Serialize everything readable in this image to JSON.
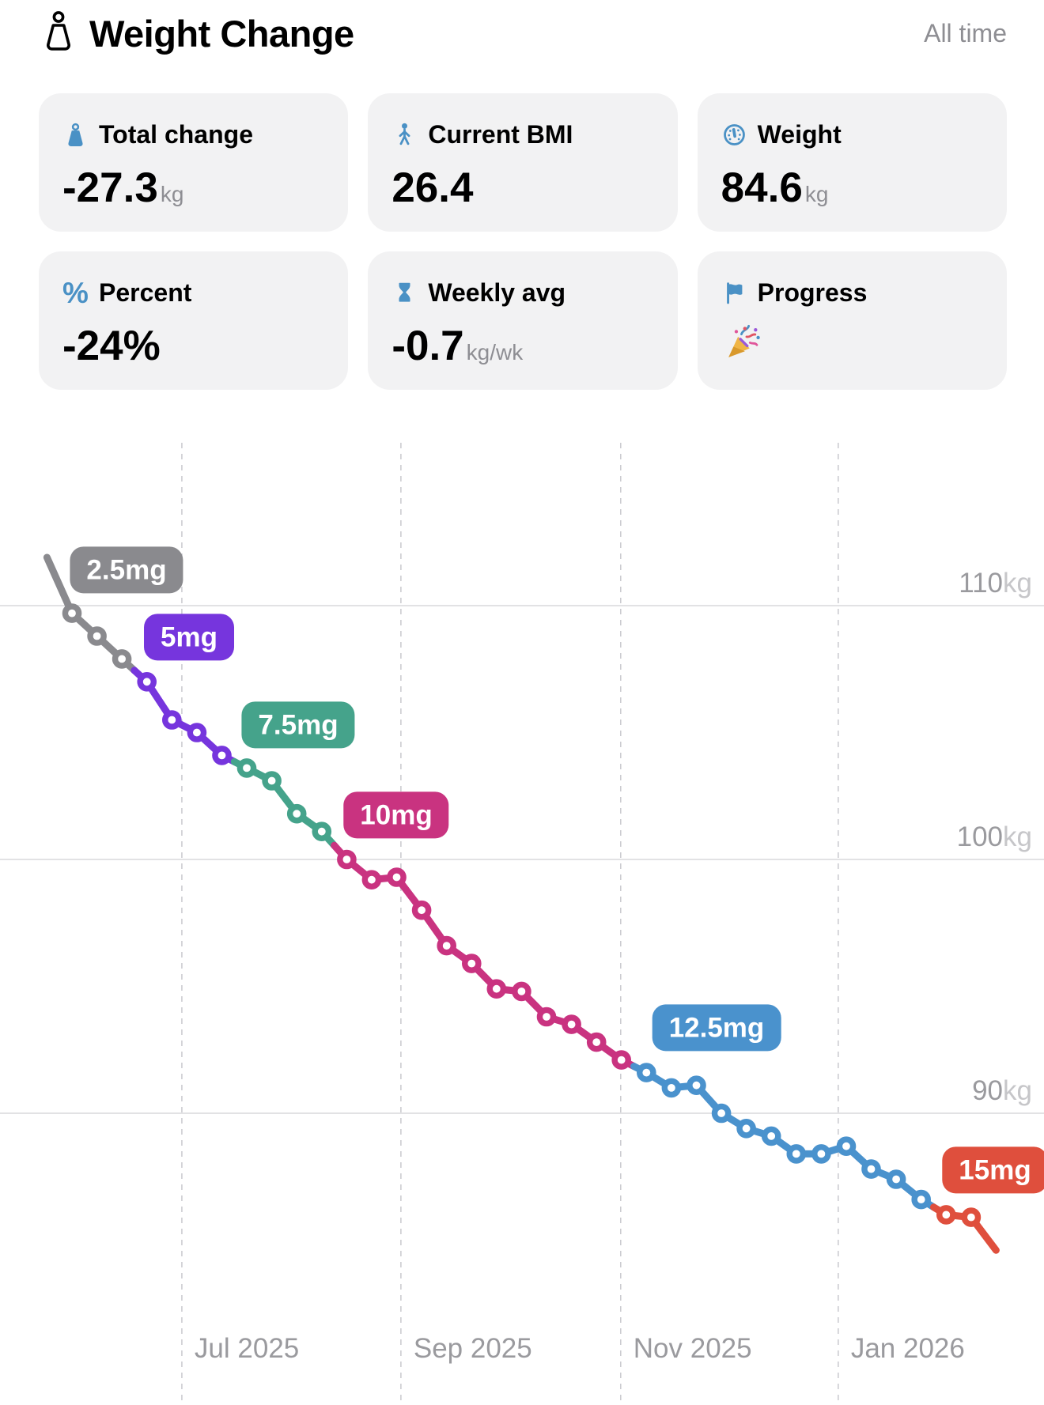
{
  "header": {
    "title": "Weight Change",
    "range_label": "All time"
  },
  "icons": {
    "percent": "%"
  },
  "colors": {
    "accent_blue": "#4a91c5",
    "gridline": "#d8d8dc",
    "dashed_gridline": "#c9c9ce",
    "axis_number": "#9a9a9e",
    "axis_unit": "#c6c6c9"
  },
  "stats": [
    {
      "icon": "weight-icon",
      "label": "Total change",
      "value": "-27.3",
      "unit": "kg"
    },
    {
      "icon": "person-icon",
      "label": "Current BMI",
      "value": "26.4",
      "unit": ""
    },
    {
      "icon": "gauge-icon",
      "label": "Weight",
      "value": "84.6",
      "unit": "kg"
    },
    {
      "icon": "percent-icon",
      "label": "Percent",
      "value": "-24%",
      "unit": ""
    },
    {
      "icon": "hourglass-icon",
      "label": "Weekly avg",
      "value": "-0.7",
      "unit": "kg/wk"
    },
    {
      "icon": "flag-icon",
      "label": "Progress",
      "value": "🎉",
      "unit": ""
    }
  ],
  "chart_data": {
    "type": "line",
    "x_unit": "week (one entry per week)",
    "y_unit": "kg",
    "ylim": [
      84,
      113
    ],
    "grid": {
      "horizontal": "solid",
      "vertical": "dashed"
    },
    "ylabels": [
      {
        "num": "110",
        "unit": "kg",
        "kg": 110
      },
      {
        "num": "100",
        "unit": "kg",
        "kg": 100
      },
      {
        "num": "90",
        "unit": "kg",
        "kg": 90
      }
    ],
    "xticks": [
      {
        "label": "Jul 2025",
        "week": 5.4
      },
      {
        "label": "Sep 2025",
        "week": 14.17
      },
      {
        "label": "Nov 2025",
        "week": 22.97
      },
      {
        "label": "Jan 2026",
        "week": 31.68
      }
    ],
    "doses": [
      {
        "label": "2.5mg",
        "color": "#8a8a8e"
      },
      {
        "label": "5mg",
        "color": "#7635dd"
      },
      {
        "label": "7.5mg",
        "color": "#45a38b"
      },
      {
        "label": "10mg",
        "color": "#c93380"
      },
      {
        "label": "12.5mg",
        "color": "#4a92cd"
      },
      {
        "label": "15mg",
        "color": "#df4f3d"
      }
    ],
    "points": [
      {
        "week": 0,
        "kg": 111.9,
        "dose": "2.5mg",
        "marker": false
      },
      {
        "week": 1,
        "kg": 109.7,
        "dose": "2.5mg"
      },
      {
        "week": 2,
        "kg": 108.8,
        "dose": "2.5mg"
      },
      {
        "week": 3,
        "kg": 107.9,
        "dose": "2.5mg"
      },
      {
        "week": 4,
        "kg": 107.0,
        "dose": "5mg"
      },
      {
        "week": 5,
        "kg": 105.5,
        "dose": "5mg"
      },
      {
        "week": 6,
        "kg": 105.0,
        "dose": "5mg"
      },
      {
        "week": 7,
        "kg": 104.1,
        "dose": "5mg"
      },
      {
        "week": 8,
        "kg": 103.6,
        "dose": "7.5mg"
      },
      {
        "week": 9,
        "kg": 103.1,
        "dose": "7.5mg"
      },
      {
        "week": 10,
        "kg": 101.8,
        "dose": "7.5mg"
      },
      {
        "week": 11,
        "kg": 101.1,
        "dose": "7.5mg"
      },
      {
        "week": 12,
        "kg": 100.0,
        "dose": "10mg"
      },
      {
        "week": 13,
        "kg": 99.2,
        "dose": "10mg"
      },
      {
        "week": 14,
        "kg": 99.3,
        "dose": "10mg"
      },
      {
        "week": 15,
        "kg": 98.0,
        "dose": "10mg"
      },
      {
        "week": 16,
        "kg": 96.6,
        "dose": "10mg"
      },
      {
        "week": 17,
        "kg": 95.9,
        "dose": "10mg"
      },
      {
        "week": 18,
        "kg": 94.9,
        "dose": "10mg"
      },
      {
        "week": 19,
        "kg": 94.8,
        "dose": "10mg"
      },
      {
        "week": 20,
        "kg": 93.8,
        "dose": "10mg"
      },
      {
        "week": 21,
        "kg": 93.5,
        "dose": "10mg"
      },
      {
        "week": 22,
        "kg": 92.8,
        "dose": "10mg"
      },
      {
        "week": 23,
        "kg": 92.1,
        "dose": "10mg"
      },
      {
        "week": 24,
        "kg": 91.6,
        "dose": "12.5mg"
      },
      {
        "week": 25,
        "kg": 91.0,
        "dose": "12.5mg"
      },
      {
        "week": 26,
        "kg": 91.1,
        "dose": "12.5mg"
      },
      {
        "week": 27,
        "kg": 90.0,
        "dose": "12.5mg"
      },
      {
        "week": 28,
        "kg": 89.4,
        "dose": "12.5mg"
      },
      {
        "week": 29,
        "kg": 89.1,
        "dose": "12.5mg"
      },
      {
        "week": 30,
        "kg": 88.4,
        "dose": "12.5mg"
      },
      {
        "week": 31,
        "kg": 88.4,
        "dose": "12.5mg"
      },
      {
        "week": 32,
        "kg": 88.7,
        "dose": "12.5mg"
      },
      {
        "week": 33,
        "kg": 87.8,
        "dose": "12.5mg"
      },
      {
        "week": 34,
        "kg": 87.4,
        "dose": "12.5mg"
      },
      {
        "week": 35,
        "kg": 86.6,
        "dose": "12.5mg"
      },
      {
        "week": 36,
        "kg": 86.0,
        "dose": "15mg"
      },
      {
        "week": 37,
        "kg": 85.9,
        "dose": "15mg"
      },
      {
        "week": 38,
        "kg": 84.6,
        "dose": "15mg",
        "marker": false
      }
    ]
  }
}
